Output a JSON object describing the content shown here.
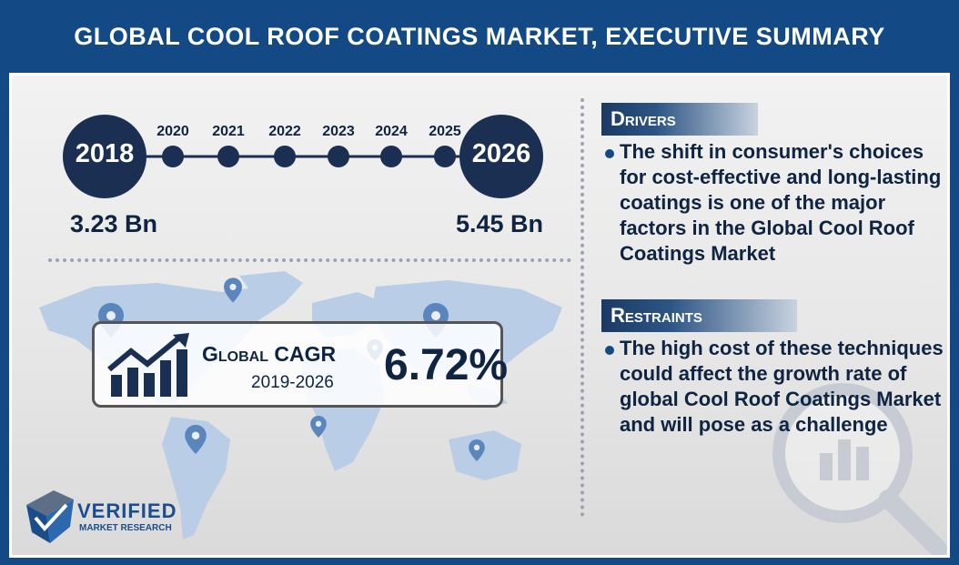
{
  "title": "GLOBAL COOL ROOF COATINGS MARKET, EXECUTIVE SUMMARY",
  "timeline": {
    "start_year": "2018",
    "end_year": "2026",
    "mid_years": [
      "2020",
      "2021",
      "2022",
      "2023",
      "2024",
      "2025"
    ],
    "start_value": "3.23 Bn",
    "end_value": "5.45 Bn"
  },
  "cagr": {
    "label": "Global CAGR",
    "period": "2019-2026",
    "value": "6.72%"
  },
  "drivers": {
    "heading": "Drivers",
    "text": "The shift in consumer's choices for cost-effective and long-lasting coatings is one of the major factors in the Global Cool Roof Coatings Market"
  },
  "restraints": {
    "heading": "Restraints",
    "text": "The high cost of these techniques could affect the growth rate of global Cool Roof Coatings Market and will pose as a challenge"
  },
  "logo": {
    "name": "VERIFIED",
    "sub": "MARKET RESEARCH"
  },
  "colors": {
    "navy": "#134a85",
    "dark_navy": "#1b2f52",
    "map": "#b9cde6"
  },
  "icons": [
    "location-pin-icon",
    "growth-chart-icon",
    "magnifier-icon",
    "logo-icon"
  ]
}
